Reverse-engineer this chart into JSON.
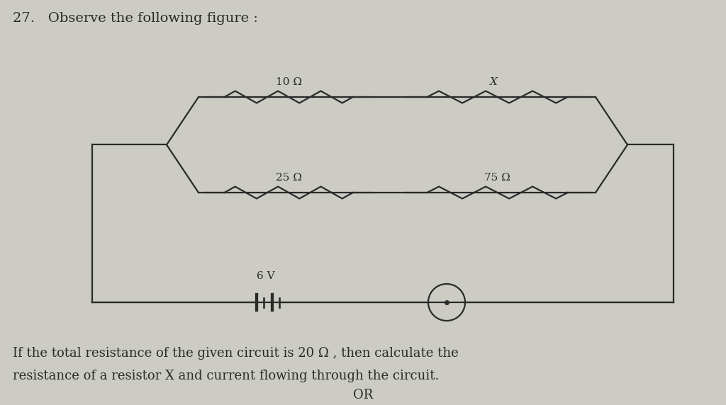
{
  "bg_color": "#ccccc4",
  "line_color": "#2a2a2a",
  "title_text": "27.   Observe the following figure :",
  "question_text1": "If the total resistance of the given circuit is 20 Ω , then calculate the",
  "question_text2": "resistance of a resistor X and current flowing through the circuit.",
  "or_text": "OR",
  "label_10": "10 Ω",
  "label_X": "X",
  "label_25": "25 Ω",
  "label_75": "75 Ω",
  "label_6V": "6 V",
  "font_size_title": 14,
  "font_size_labels": 11,
  "font_size_question": 13,
  "font_size_or": 13
}
